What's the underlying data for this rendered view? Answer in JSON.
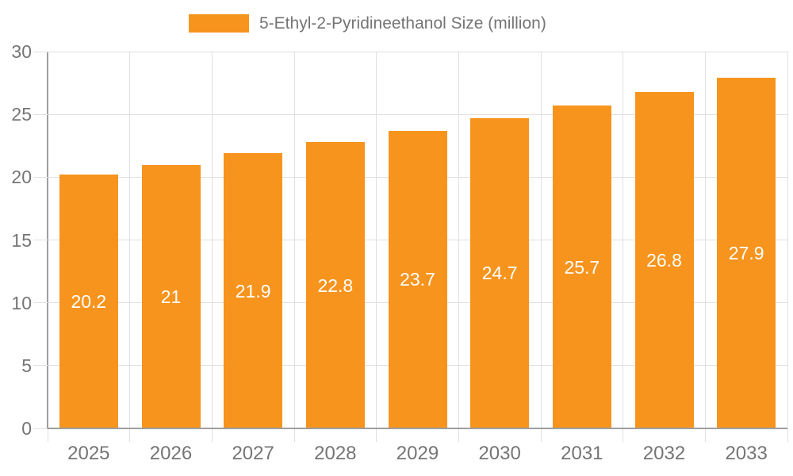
{
  "legend": {
    "label": "5-Ethyl-2-Pyridineethanol Size (million)",
    "position": "top"
  },
  "chart_data": {
    "type": "bar",
    "title": "5-Ethyl-2-Pyridineethanol Size (million)",
    "categories": [
      "2025",
      "2026",
      "2027",
      "2028",
      "2029",
      "2030",
      "2031",
      "2032",
      "2033"
    ],
    "values": [
      20.2,
      21,
      21.9,
      22.8,
      23.7,
      24.7,
      25.7,
      26.8,
      27.9
    ],
    "bar_labels": [
      "20.2",
      "21",
      "21.9",
      "22.8",
      "23.7",
      "24.7",
      "25.7",
      "26.8",
      "27.9"
    ],
    "xlabel": "",
    "ylabel": "",
    "ylim": [
      0,
      30
    ],
    "yticks": [
      0,
      5,
      10,
      15,
      20,
      25,
      30
    ],
    "grid": true,
    "legend_position": "top",
    "colors": {
      "bar": "#F7941E",
      "text": "#757575",
      "axis": "#9E9E9E",
      "grid": "#E0E0E0",
      "bar_label": "#FFFFFF",
      "background": "#FFFFFF"
    }
  }
}
